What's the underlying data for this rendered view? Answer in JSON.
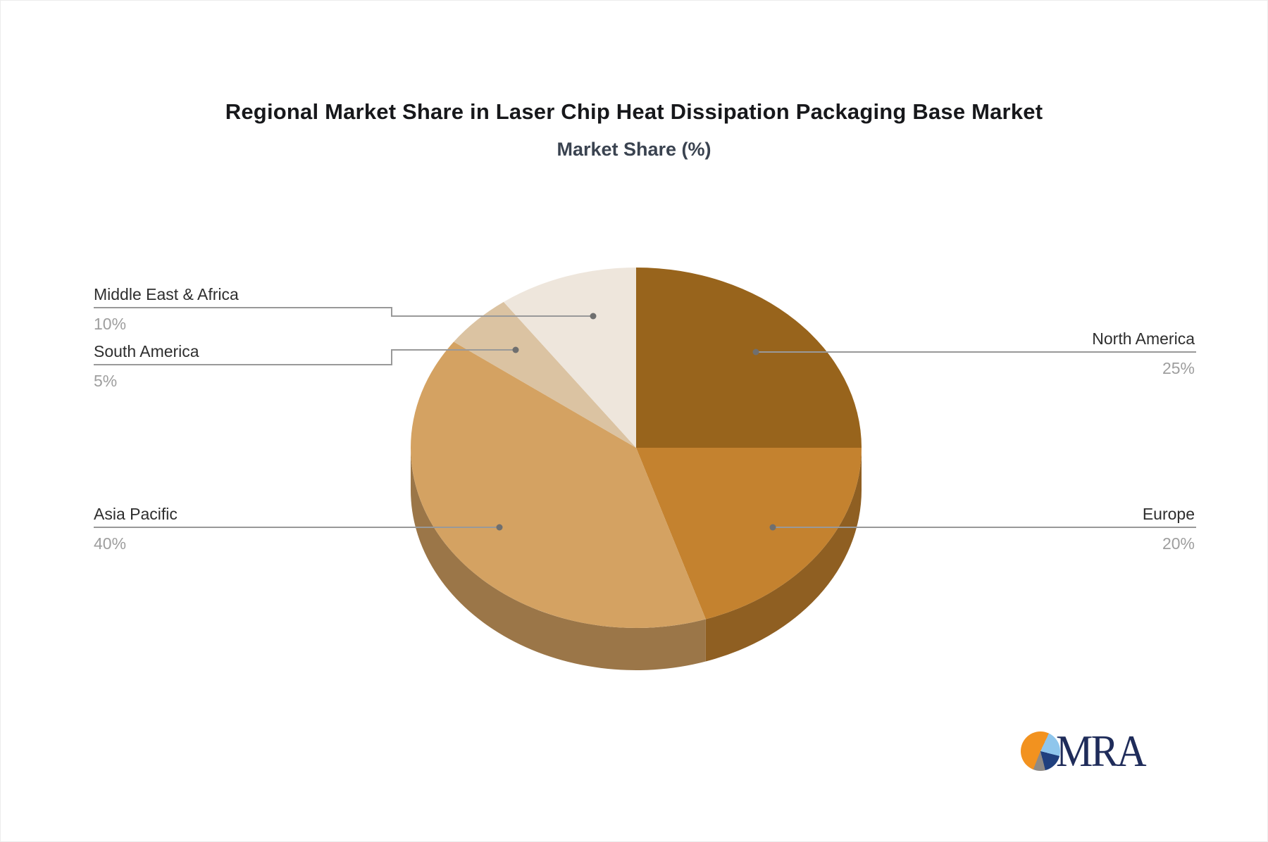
{
  "title": "Regional Market Share in Laser Chip Heat Dissipation Packaging Base Market",
  "subtitle": "Market Share (%)",
  "logo": {
    "text": "MRA",
    "icon": "pie-chart-logo-icon"
  },
  "chart_data": {
    "type": "pie",
    "title": "Market Share (%)",
    "unit": "%",
    "effect": "3d",
    "start_angle_deg": 0,
    "clockwise": true,
    "slices": [
      {
        "name": "North America",
        "value": 25,
        "pct_label": "25%",
        "color": "#98641C",
        "label_side": "right"
      },
      {
        "name": "Europe",
        "value": 20,
        "pct_label": "20%",
        "color": "#C4822F",
        "label_side": "right"
      },
      {
        "name": "Asia Pacific",
        "value": 40,
        "pct_label": "40%",
        "color": "#D4A262",
        "label_side": "left"
      },
      {
        "name": "South America",
        "value": 5,
        "pct_label": "5%",
        "color": "#DBC3A2",
        "label_side": "left"
      },
      {
        "name": "Middle East & Africa",
        "value": 10,
        "pct_label": "10%",
        "color": "#EEE6DC",
        "label_side": "left"
      }
    ],
    "style": {
      "leader_line_color": "#999999",
      "dot_color": "#6f6f6f",
      "label_color": "#2e2e2e",
      "value_color": "#9e9e9e",
      "title_color": "#17181b",
      "subtitle_color": "#3a4350",
      "logo_navy": "#1f2c5a",
      "logo_orange": "#F2921F",
      "logo_lightblue": "#8FC6EC",
      "logo_gray": "#8F8A85"
    }
  }
}
